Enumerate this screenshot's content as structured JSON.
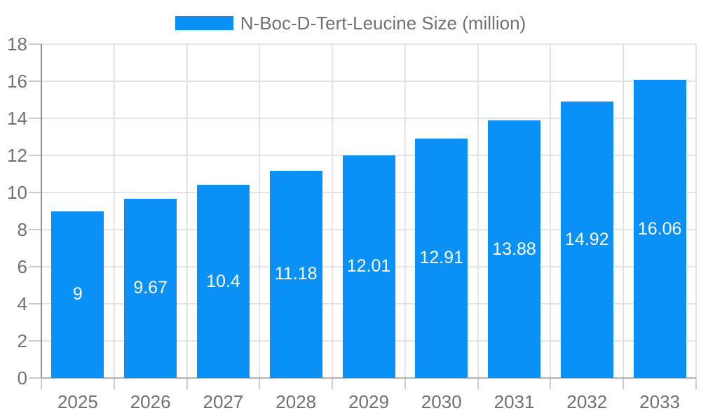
{
  "chart_data": {
    "type": "bar",
    "title": "N-Boc-D-Tert-Leucine Size (million)",
    "legend": {
      "position": "top",
      "label": "N-Boc-D-Tert-Leucine Size (million)"
    },
    "categories": [
      "2025",
      "2026",
      "2027",
      "2028",
      "2029",
      "2030",
      "2031",
      "2032",
      "2033"
    ],
    "series": [
      {
        "name": "N-Boc-D-Tert-Leucine Size (million)",
        "values": [
          9,
          9.67,
          10.4,
          11.18,
          12.01,
          12.91,
          13.88,
          14.92,
          16.06
        ],
        "value_labels": [
          "9",
          "9.67",
          "10.4",
          "11.18",
          "12.01",
          "12.91",
          "13.88",
          "14.92",
          "16.06"
        ]
      }
    ],
    "ylim": [
      0,
      18
    ],
    "yticks": [
      0,
      2,
      4,
      6,
      8,
      10,
      12,
      14,
      16,
      18
    ],
    "grid": {
      "horizontal": true,
      "vertical": true
    },
    "colors": {
      "bar": "#0a91f8",
      "bar_value_text": "#ffffff",
      "axis_text": "#717171",
      "legend_text": "#717171",
      "grid_line": "#e4e4e4",
      "tick_line": "#cccccc",
      "y_axis_line": "#8f8f8f",
      "x_axis_line": "#b3b3b3",
      "background": "#ffffff"
    }
  }
}
